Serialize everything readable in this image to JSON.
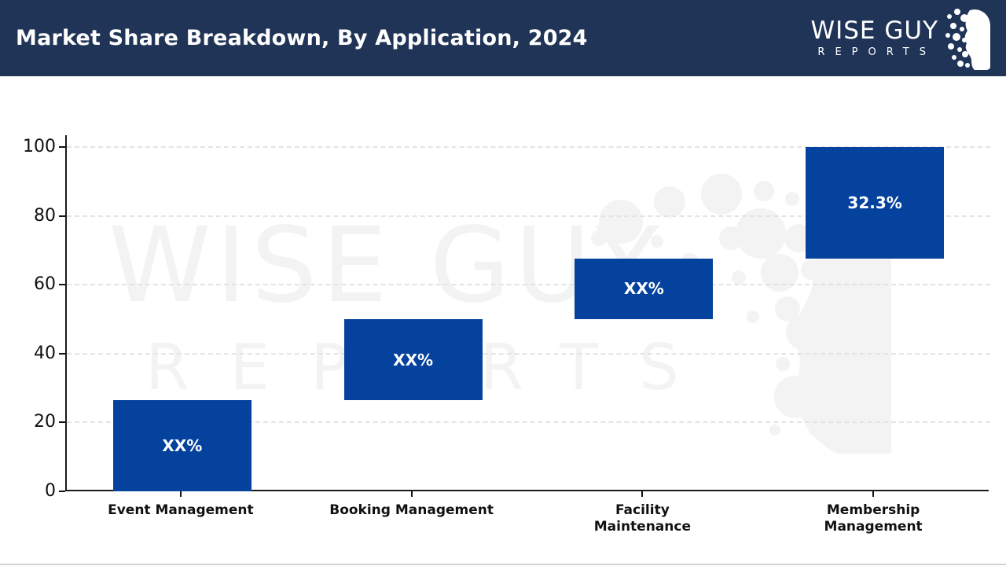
{
  "header": {
    "title": "Market Share Breakdown, By Application, 2024",
    "logo_line1": "WISE GUY",
    "logo_line2": "REPORTS"
  },
  "watermark": {
    "line1": "WISE GUY",
    "line2": "REPORTS"
  },
  "chart_data": {
    "type": "bar",
    "subtype": "floating-segment-bar",
    "title": "Market Share Breakdown, By Application, 2024",
    "categories": [
      "Event Management",
      "Booking Management",
      "Facility\nMaintenance",
      "Membership\nManagement"
    ],
    "bars": [
      {
        "category": "Event Management",
        "start": 0,
        "end": 26.4,
        "label": "XX%"
      },
      {
        "category": "Booking Management",
        "start": 26.4,
        "end": 50.0,
        "label": "XX%"
      },
      {
        "category": "Facility Maintenance",
        "start": 50.0,
        "end": 67.7,
        "label": "XX%"
      },
      {
        "category": "Membership Management",
        "start": 67.7,
        "end": 100.0,
        "label": "32.3%"
      }
    ],
    "yticks": [
      0,
      20,
      40,
      60,
      80,
      100
    ],
    "ylim": [
      0,
      103.5
    ],
    "xlabel": "",
    "ylabel": "",
    "grid": "horizontal-dashed",
    "legend": "none",
    "bar_color": "#05429d",
    "bar_label_color": "#ffffff",
    "axis_color": "#1a1a1a",
    "grid_color": "#e3e3e3"
  },
  "colors": {
    "header_bg": "#203457",
    "watermark": "#f3f3f3",
    "page_bg": "#ffffff",
    "bottom_line": "#d2d2d2"
  }
}
